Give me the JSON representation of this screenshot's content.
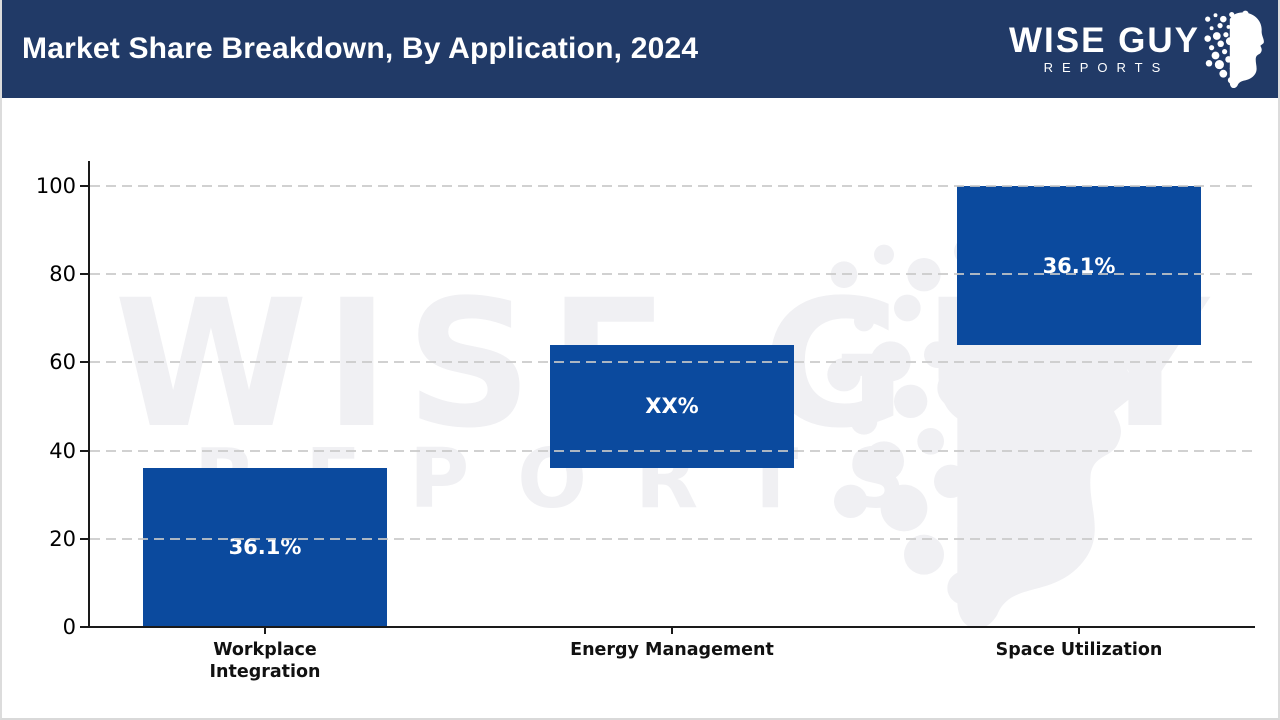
{
  "header": {
    "title": "Market Share Breakdown, By Application, 2024",
    "logo": {
      "line1": "WISE GUY",
      "line2": "REPORTS"
    }
  },
  "watermark": {
    "line1": "WISE GUY",
    "line2": "REPORTS"
  },
  "chart_data": {
    "type": "bar",
    "subtype": "floating-waterfall",
    "title": "Market Share Breakdown, By Application, 2024",
    "categories": [
      "Workplace\nIntegration",
      "Energy Management",
      "Space Utilization"
    ],
    "bars": [
      {
        "category": "Workplace Integration",
        "from": 0,
        "to": 36.1,
        "label": "36.1%"
      },
      {
        "category": "Energy Management",
        "from": 36.1,
        "to": 63.9,
        "label": "XX%"
      },
      {
        "category": "Space Utilization",
        "from": 63.9,
        "to": 100,
        "label": "36.1%"
      }
    ],
    "xlabel": "",
    "ylabel": "",
    "ylim": [
      0,
      100
    ],
    "yticks": [
      0,
      20,
      40,
      60,
      80,
      100
    ],
    "grid": {
      "horizontal": true,
      "style": "dashed",
      "drawn_above_bars": true
    },
    "legend": "none",
    "bar_color": "#0b4a9e",
    "bar_label_color": "#ffffff",
    "axis_color": "#1a1a1a",
    "gridline_color": "#c9c9c9"
  },
  "colors": {
    "header_bg": "#213a67",
    "header_text": "#ffffff",
    "watermark": "#f0f0f3",
    "page_bg": "#ffffff",
    "border": "#d9d9d9"
  }
}
